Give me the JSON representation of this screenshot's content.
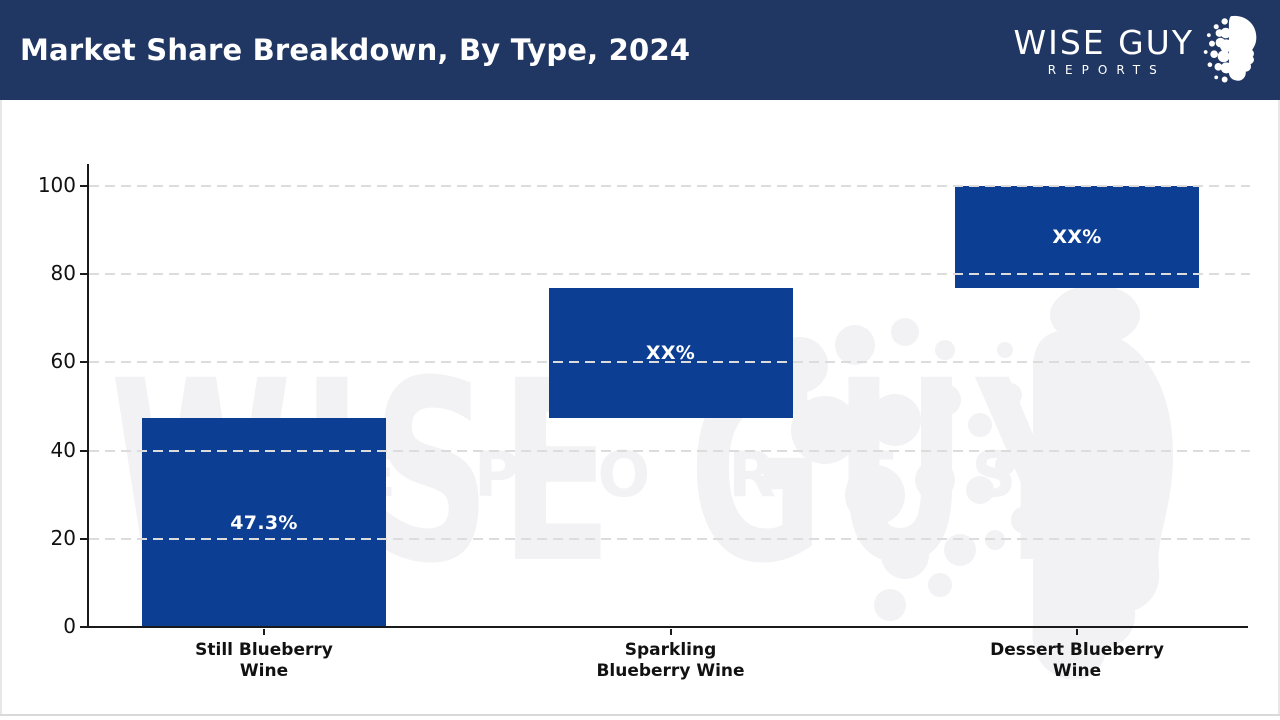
{
  "header": {
    "title": "Market Share Breakdown, By Type, 2024",
    "logo": {
      "name": "WISE GUY",
      "sub": "REPORTS",
      "icon": "dotted-face-profile-icon"
    }
  },
  "watermark": {
    "line1": "WISE GUY",
    "line2": "REPORTS"
  },
  "colors": {
    "header_bg": "#213763",
    "bar_fill": "#0c3e93",
    "grid": "#dcdcdc",
    "axis": "#1a1a1a",
    "watermark": "#f2f2f4",
    "bar_label": "#ffffff"
  },
  "chart_data": {
    "type": "bar",
    "subtype": "floating-segment-waterfall",
    "title": "Market Share Breakdown, By Type, 2024",
    "categories": [
      [
        "Still Blueberry",
        "Wine"
      ],
      [
        "Sparkling",
        "Blueberry Wine"
      ],
      [
        "Dessert Blueberry",
        "Wine"
      ]
    ],
    "bars": [
      {
        "category": "Still Blueberry Wine",
        "start": 0,
        "end": 47.3,
        "label": "47.3%"
      },
      {
        "category": "Sparkling Blueberry Wine",
        "start": 47.3,
        "end": 76.8,
        "label": "XX%"
      },
      {
        "category": "Dessert Blueberry Wine",
        "start": 76.8,
        "end": 100,
        "label": "XX%"
      }
    ],
    "ylim": [
      0,
      100
    ],
    "yticks": [
      0,
      20,
      40,
      60,
      80,
      100
    ],
    "xlabel": "",
    "ylabel": "",
    "grid": "horizontal-dashed",
    "legend": "none"
  }
}
